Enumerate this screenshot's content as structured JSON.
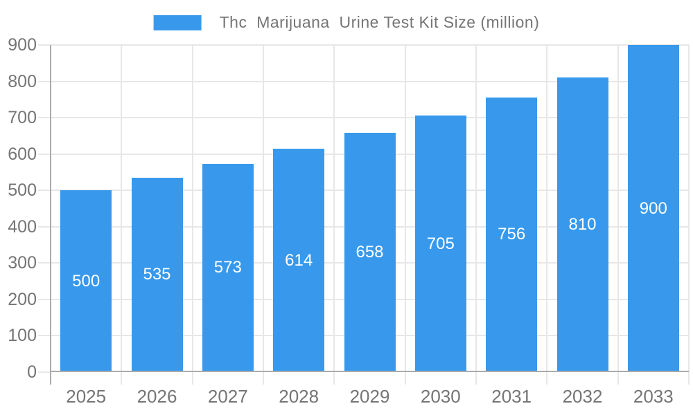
{
  "chart_data": {
    "type": "bar",
    "title": "Thc  Marijuana  Urine Test Kit Size (million)",
    "legend": {
      "label": "Thc  Marijuana  Urine Test Kit Size (million)",
      "position": "top"
    },
    "categories": [
      "2025",
      "2026",
      "2027",
      "2028",
      "2029",
      "2030",
      "2031",
      "2032",
      "2033"
    ],
    "series": [
      {
        "name": "Thc  Marijuana  Urine Test Kit Size (million)",
        "values": [
          500,
          535,
          573,
          614,
          658,
          705,
          756,
          810,
          900
        ]
      }
    ],
    "value_labels_shown": true,
    "xlabel": "",
    "ylabel": "",
    "ylim": [
      0,
      900
    ],
    "yticks": [
      0,
      100,
      200,
      300,
      400,
      500,
      600,
      700,
      800,
      900
    ],
    "grid": "horizontal-and-vertical",
    "colors": {
      "bar": "#3899EC",
      "grid": "#e7e7e7",
      "axis": "#ababab",
      "text": "#757575",
      "value_text": "#ffffff",
      "background": "#ffffff"
    }
  }
}
